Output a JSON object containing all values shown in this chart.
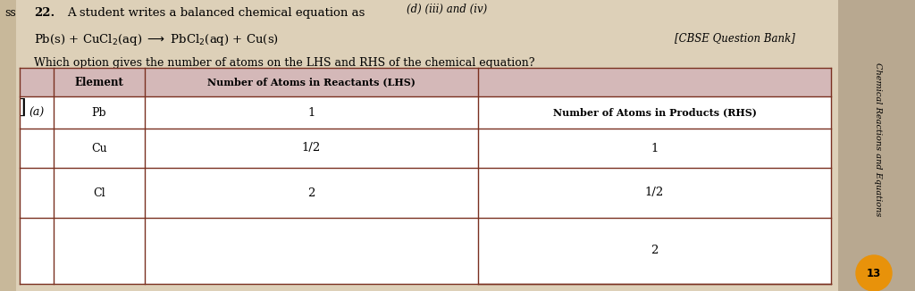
{
  "background_color": "#c8b89a",
  "page_background": "#ddd0b8",
  "top_label": "(d) (iii) and (iv)",
  "question_number": "22.",
  "question_text": "A student writes a balanced chemical equation as",
  "equation_source": "[CBSE Question Bank]",
  "subquestion": "Which option gives the number of atoms on the LHS and RHS of the chemical equation?",
  "col1_header": "Element",
  "col2_header": "Number of Atoms in Reactants (LHS)",
  "col3_header": "Number of Atoms in Products (RHS)",
  "row_label": "(a)",
  "elements": [
    "Pb",
    "Cu",
    "Cl"
  ],
  "lhs_values": [
    "1",
    "1/2",
    "2"
  ],
  "rhs_values": [
    "1",
    "1/2",
    "2"
  ],
  "side_text": "Chemical Reactions and Equations",
  "page_number": "13",
  "page_num_bg": "#e8920a",
  "left_label": "ss",
  "left_bracket": "]",
  "header_bg": "#d4b8b8",
  "table_line_color": "#7a3020",
  "right_panel_color": "#b8a890"
}
